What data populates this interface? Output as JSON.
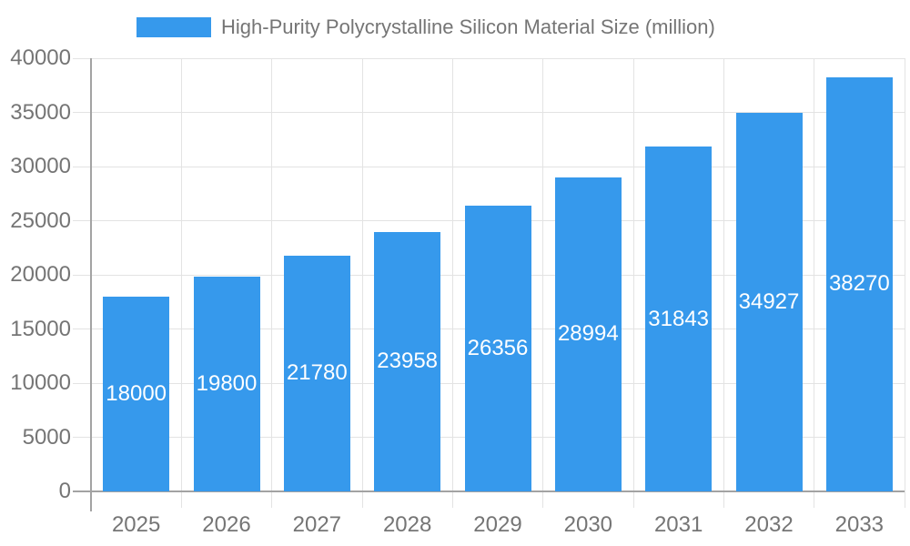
{
  "chart_data": {
    "type": "bar",
    "title": "High-Purity Polycrystalline Silicon Material Size (million)",
    "legend_position": "top",
    "categories": [
      "2025",
      "2026",
      "2027",
      "2028",
      "2029",
      "2030",
      "2031",
      "2032",
      "2033"
    ],
    "series": [
      {
        "name": "High-Purity Polycrystalline Silicon Material Size (million)",
        "values": [
          18000,
          19800,
          21780,
          23958,
          26356,
          28994,
          31843,
          34927,
          38270
        ]
      }
    ],
    "xlabel": "",
    "ylabel": "",
    "ylim": [
      0,
      40000
    ],
    "yticks": [
      0,
      5000,
      10000,
      15000,
      20000,
      25000,
      30000,
      35000,
      40000
    ],
    "grid": true,
    "colors": {
      "bar": "#3699EC",
      "value_label": "#ffffff",
      "tick_label": "#757575",
      "legend_label": "#757575",
      "gridline": "#e3e3e3",
      "axis_line": "#a3a3a3",
      "background": "#ffffff"
    }
  }
}
